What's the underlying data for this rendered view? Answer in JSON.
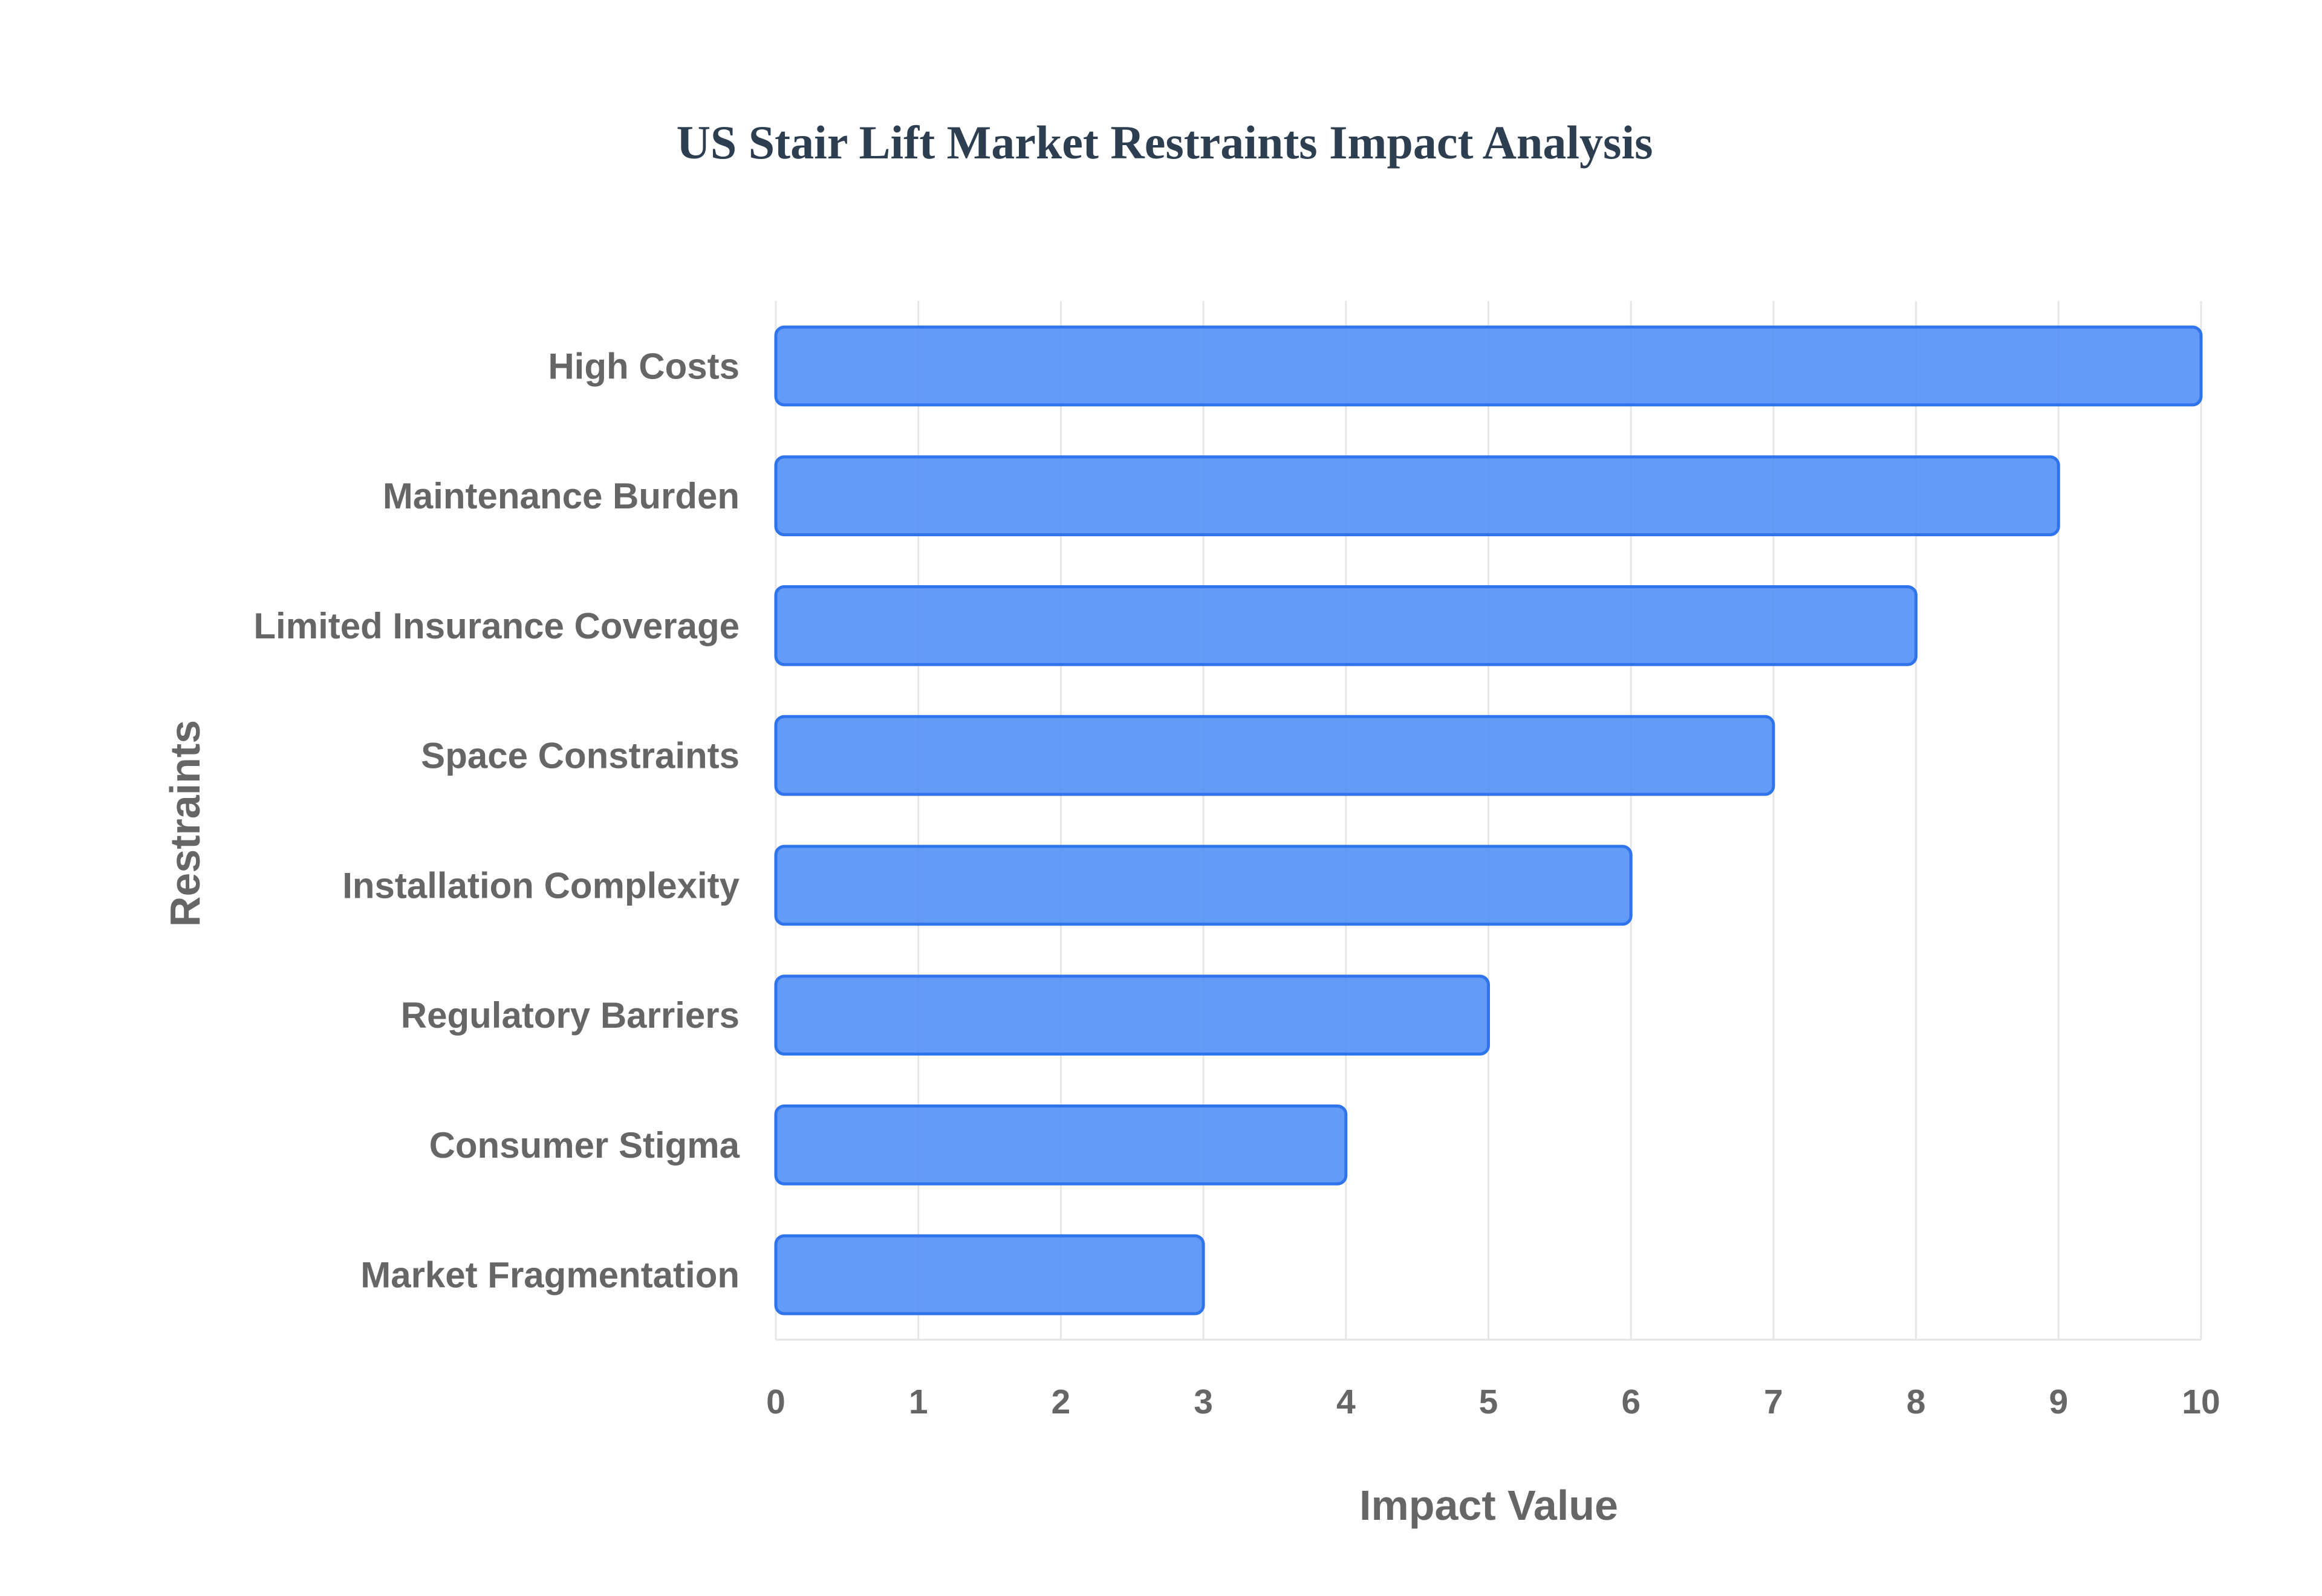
{
  "chart_data": {
    "type": "bar",
    "orientation": "horizontal",
    "title": "US Stair Lift Market Restraints Impact Analysis",
    "xlabel": "Impact Value",
    "ylabel": "Restraints",
    "xlim": [
      0,
      10
    ],
    "x_ticks": [
      "0",
      "1",
      "2",
      "3",
      "4",
      "5",
      "6",
      "7",
      "8",
      "9",
      "10"
    ],
    "grid": true,
    "legend": "none",
    "categories": [
      "High Costs",
      "Maintenance Burden",
      "Limited Insurance Coverage",
      "Space Constraints",
      "Installation Complexity",
      "Regulatory Barriers",
      "Consumer Stigma",
      "Market Fragmentation"
    ],
    "values": [
      10,
      9,
      8,
      7,
      6,
      5,
      4,
      3
    ],
    "colors": {
      "bar_fill": "#4b8bf4",
      "bar_stroke": "#2f74ec",
      "title": "#2c3e50",
      "text": "#666666",
      "grid": "#e6e6e6"
    }
  }
}
